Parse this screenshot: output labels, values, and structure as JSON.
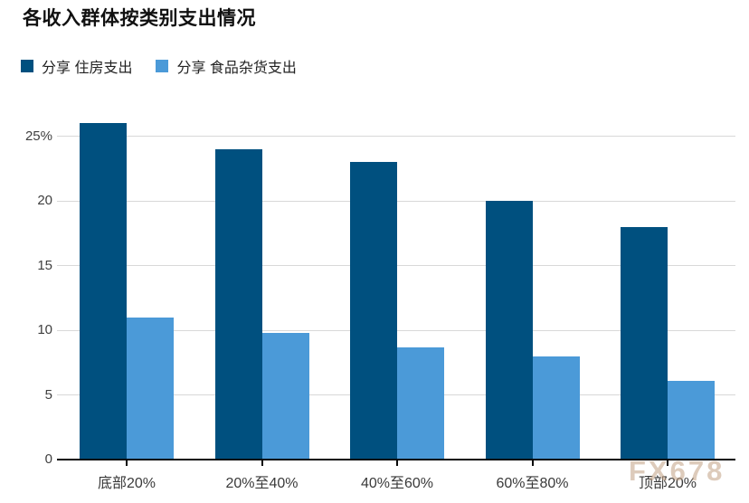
{
  "title": "各收入群体按类别支出情况",
  "watermark": {
    "text": "FX678",
    "color": "rgba(193,160,131,0.55)"
  },
  "chart_data": {
    "type": "bar",
    "title": "各收入群体按类别支出情况",
    "categories": [
      "底部20%",
      "20%至40%",
      "40%至60%",
      "60%至80%",
      "顶部20%"
    ],
    "series": [
      {
        "name": "分享 住房支出",
        "color": "#00507f",
        "values": [
          26,
          24,
          23,
          20,
          18
        ]
      },
      {
        "name": "分享 食品杂货支出",
        "color": "#4b9ad8",
        "values": [
          11,
          9.8,
          8.7,
          8,
          6.1
        ]
      }
    ],
    "xlabel": "",
    "ylabel": "",
    "ylim": [
      0,
      27.8
    ],
    "yticks": [
      {
        "value": 0,
        "label": "0"
      },
      {
        "value": 5,
        "label": "5"
      },
      {
        "value": 10,
        "label": "10"
      },
      {
        "value": 15,
        "label": "15"
      },
      {
        "value": 20,
        "label": "20"
      },
      {
        "value": 25,
        "label": "25%"
      }
    ],
    "grid": true,
    "legend_position": "top-left",
    "axis_color": "#0a0a0a",
    "gridline_color": "#d8d8d8",
    "background": "#ffffff"
  }
}
